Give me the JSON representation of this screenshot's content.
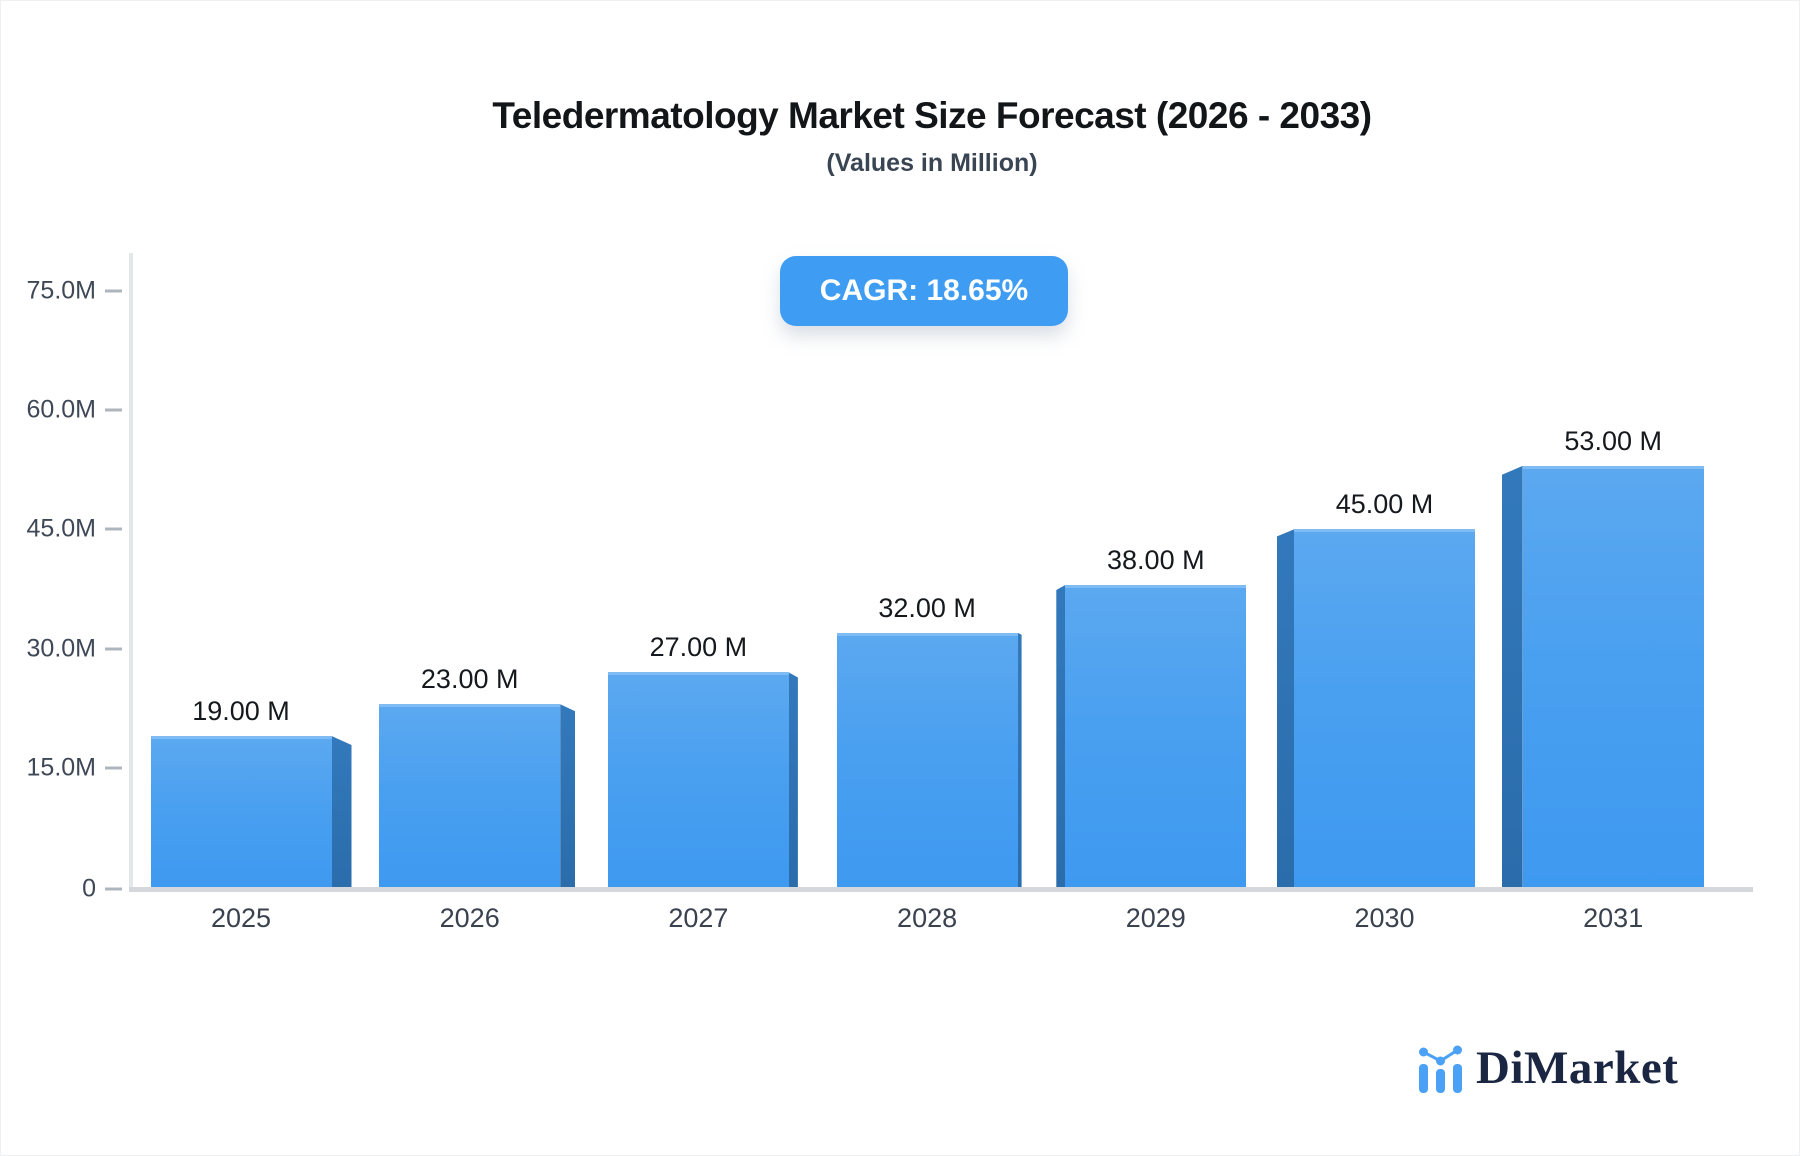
{
  "header": {
    "title": "Teledermatology Market Size Forecast (2026 - 2033)",
    "subtitle": "(Values in Million)"
  },
  "badge": {
    "label": "CAGR: 18.65%",
    "bg_color": "#3e9df2",
    "text_color": "#ffffff"
  },
  "logo": {
    "text": "DiMarket",
    "icon": "bar-chart-trend-icon",
    "icon_color": "#4aa1f6",
    "text_color": "#1b2742"
  },
  "chart_data": {
    "type": "bar",
    "title": "Teledermatology Market Size Forecast (2026 - 2033)",
    "subtitle": "(Values in Million)",
    "unit": "Million",
    "categories": [
      "2025",
      "2026",
      "2027",
      "2028",
      "2029",
      "2030",
      "2031"
    ],
    "values": [
      19,
      23,
      27,
      32,
      38,
      45,
      53
    ],
    "value_labels": [
      "19.00 M",
      "23.00 M",
      "27.00 M",
      "32.00 M",
      "38.00 M",
      "45.00 M",
      "53.00 M"
    ],
    "xlabel": "",
    "ylabel": "",
    "ylim": [
      0,
      75
    ],
    "yticks": [
      0,
      15,
      30,
      45,
      60,
      75
    ],
    "ytick_labels": [
      "0",
      "15.0M",
      "30.0M",
      "45.0M",
      "60.0M",
      "75.0M"
    ],
    "grid": false,
    "legend_position": "none",
    "bar_color_top": "#5ba8f0",
    "bar_color_bottom": "#3e99f0",
    "bar_side_color": "#2e72b4",
    "effect": "pseudo-3d bars, side faces vanish toward chart center"
  }
}
